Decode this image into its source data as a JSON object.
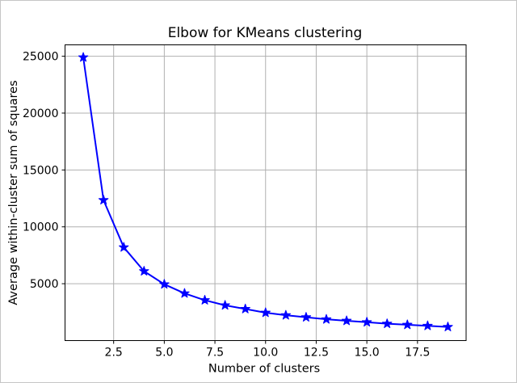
{
  "chart_data": {
    "type": "line",
    "title": "Elbow for KMeans clustering",
    "xlabel": "Number of clusters",
    "ylabel": "Average within-cluster sum of squares",
    "series": [
      {
        "name": "Average within-cluster sum of squares",
        "x": [
          1,
          2,
          3,
          4,
          5,
          6,
          7,
          8,
          9,
          10,
          11,
          12,
          13,
          14,
          15,
          16,
          17,
          18,
          19
        ],
        "y": [
          24900,
          12350,
          8200,
          6100,
          4950,
          4150,
          3550,
          3100,
          2780,
          2450,
          2230,
          2050,
          1870,
          1740,
          1620,
          1480,
          1390,
          1300,
          1200
        ]
      }
    ],
    "xlim": [
      0.1,
      19.9
    ],
    "ylim": [
      0,
      26000
    ],
    "xticks": {
      "values": [
        2.5,
        5,
        7.5,
        10,
        12.5,
        15,
        17.5
      ],
      "labels": [
        "2.5",
        "5.0",
        "7.5",
        "10.0",
        "12.5",
        "15.0",
        "17.5"
      ]
    },
    "yticks": {
      "values": [
        5000,
        10000,
        15000,
        20000,
        25000
      ],
      "labels": [
        "5000",
        "10000",
        "15000",
        "20000",
        "25000"
      ]
    },
    "grid": true,
    "legend": "none",
    "marker": "star",
    "line_color": "#0000ff",
    "grid_color": "#b0b0b0",
    "spine_color": "#000000",
    "background_color": "#ffffff"
  }
}
